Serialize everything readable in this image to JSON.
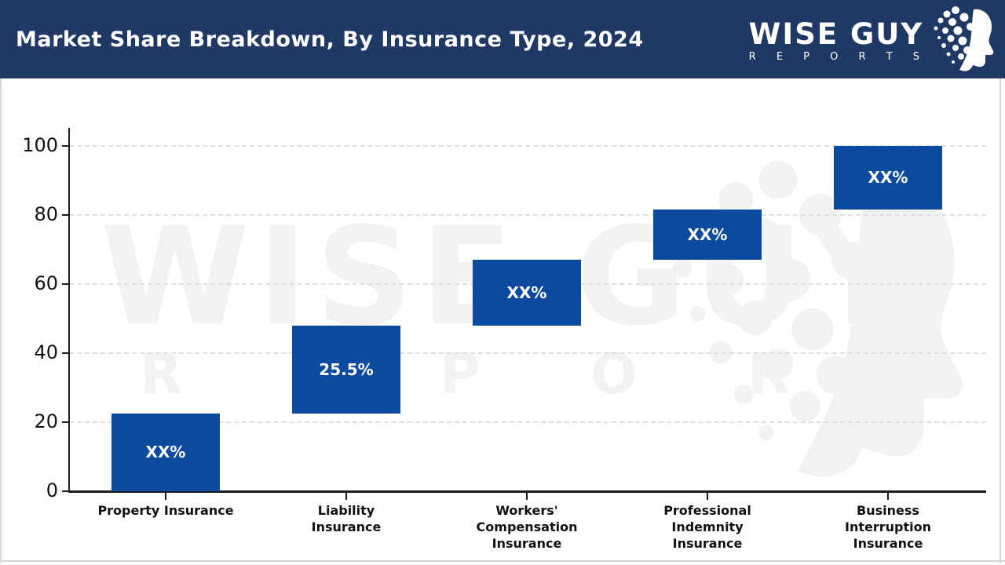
{
  "header": {
    "title": "Market Share Breakdown, By Insurance Type, 2024",
    "bg_color": "#203864",
    "logo": {
      "line1": "WISE GUY",
      "line2": "R E P O R T S"
    }
  },
  "watermark": {
    "line1": "WISE GUY",
    "line2": "R E P O R T S"
  },
  "chart_data": {
    "type": "bar",
    "subtype": "waterfall",
    "title": "Market Share Breakdown, By Insurance Type, 2024",
    "categories": [
      "Property Insurance",
      "Liability Insurance",
      "Workers' Compensation Insurance",
      "Professional Indemnity Insurance",
      "Business Interruption Insurance"
    ],
    "categories_display": [
      "Property Insurance",
      "Liability\nInsurance",
      "Workers'\nCompensation\nInsurance",
      "Professional\nIndemnity\nInsurance",
      "Business\nInterruption\nInsurance"
    ],
    "segments": [
      {
        "category": "Property Insurance",
        "start": 0,
        "end": 22.5,
        "value": 22.5,
        "label": "XX%"
      },
      {
        "category": "Liability Insurance",
        "start": 22.5,
        "end": 48,
        "value": 25.5,
        "label": "25.5%"
      },
      {
        "category": "Workers' Compensation Insurance",
        "start": 48,
        "end": 67,
        "value": 19,
        "label": "XX%"
      },
      {
        "category": "Professional Indemnity Insurance",
        "start": 67,
        "end": 81.5,
        "value": 14.5,
        "label": "XX%"
      },
      {
        "category": "Business Interruption Insurance",
        "start": 81.5,
        "end": 100,
        "value": 18.5,
        "label": "XX%"
      }
    ],
    "y_ticks": [
      0,
      20,
      40,
      60,
      80,
      100
    ],
    "ylim": [
      0,
      105
    ],
    "xlabel": "",
    "ylabel": "",
    "grid": "horizontal-dashed",
    "legend": "none",
    "bar_color": "#0b4a9e",
    "bar_label_color": "#ffffff",
    "axis_color": "#1a1a1a",
    "grid_color": "#dedede",
    "watermark_color": "#f2f2f2"
  }
}
